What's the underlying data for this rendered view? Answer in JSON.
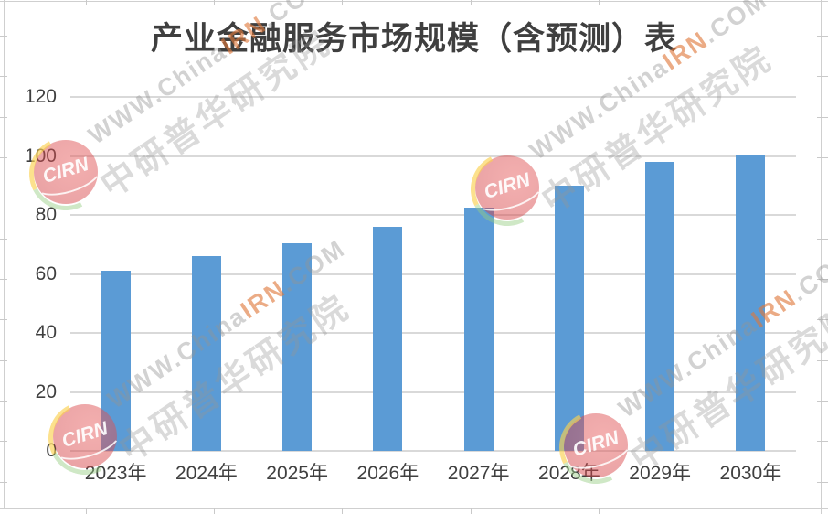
{
  "title": "产业金融服务市场规模（含预测）表",
  "chart_data": {
    "type": "bar",
    "title": "产业金融服务市场规模（含预测）表",
    "categories": [
      "2023年",
      "2024年",
      "2025年",
      "2026年",
      "2027年",
      "2028年",
      "2029年",
      "2030年"
    ],
    "values": [
      61,
      66,
      70.5,
      76,
      82.5,
      90,
      98,
      100.5
    ],
    "xlabel": "",
    "ylabel": "",
    "ylim": [
      0,
      120
    ],
    "yticks": [
      0,
      20,
      40,
      60,
      80,
      100,
      120
    ],
    "grid": "horizontal",
    "legend": "none",
    "bar_color": "#5B9BD5",
    "gridline_color": "#D9D9D9",
    "text_color": "#3F3F3F"
  },
  "watermark": {
    "logo_text": "CIRN",
    "line1_prefix": "WWW.China",
    "line1_highlight": "IRN",
    "line1_suffix": ".COM",
    "line2": "中研普华研究院",
    "highlight_color": "#DE783A"
  }
}
